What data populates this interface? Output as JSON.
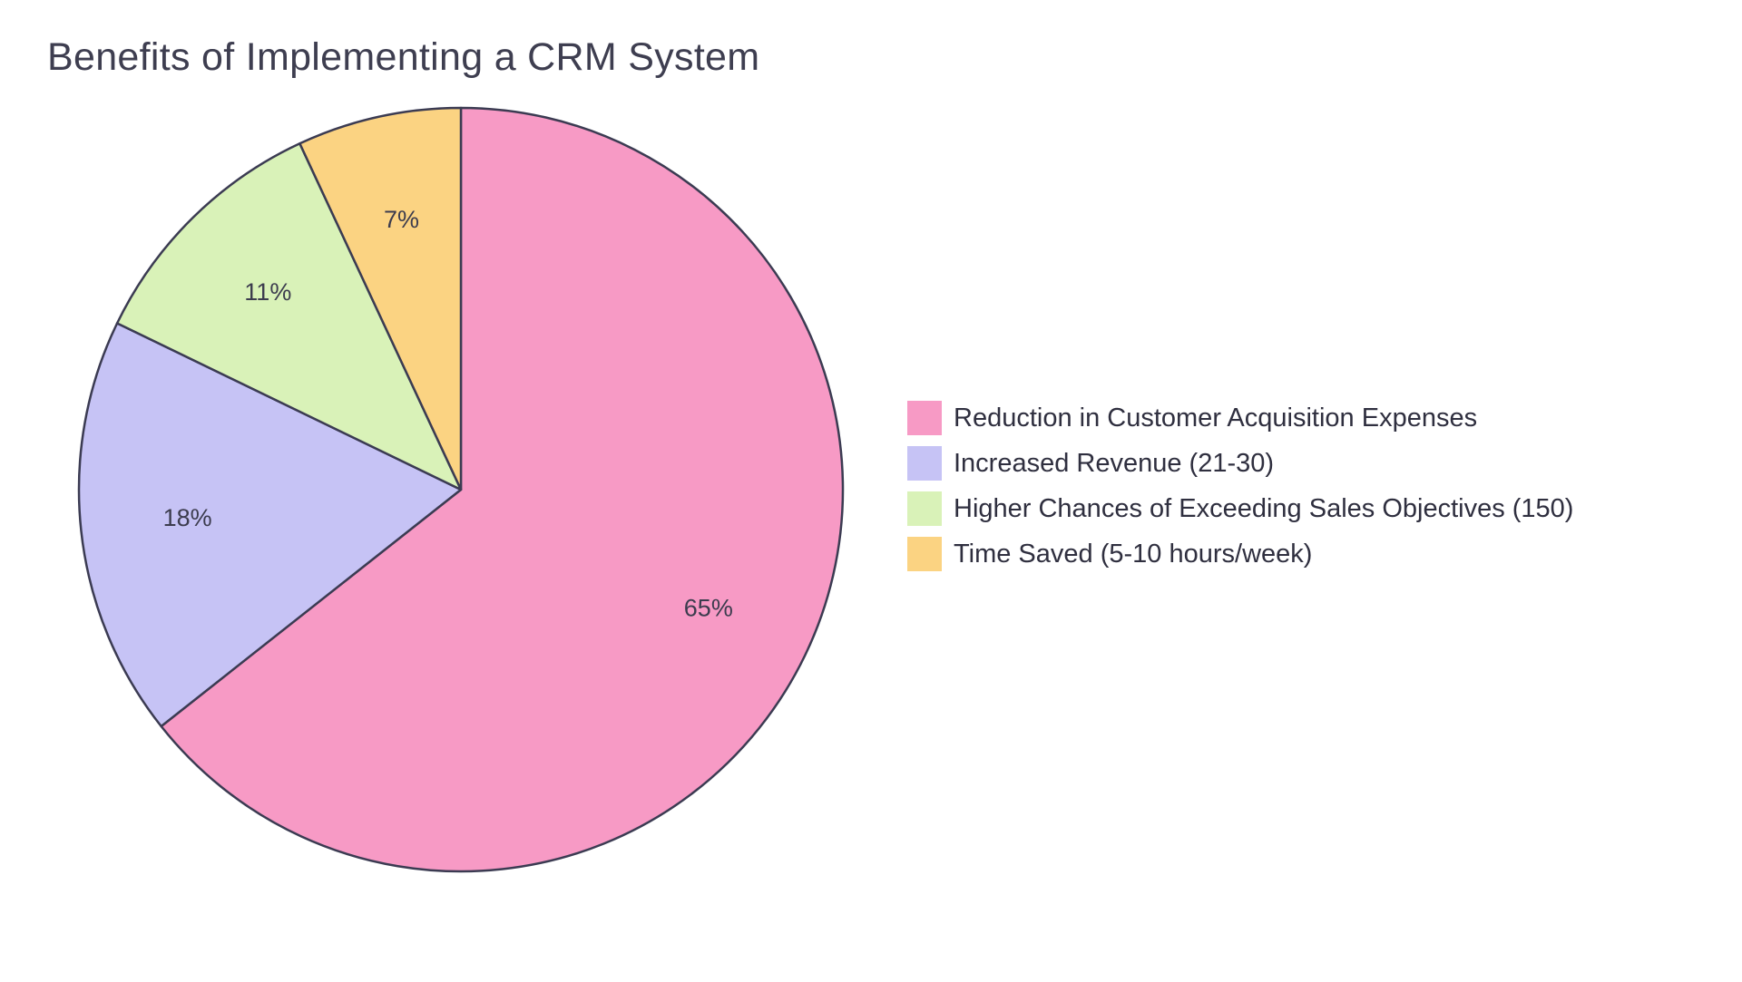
{
  "page": {
    "background": "#ffffff"
  },
  "chart_data": {
    "type": "pie",
    "title": "Benefits of Implementing a CRM System",
    "direction": "clockwise",
    "start_angle_deg": 0,
    "legend_position": "right",
    "stroke_color": "#3B3B52",
    "label_color": "#3C3C4E",
    "slices": [
      {
        "label": "Reduction in Customer Acquisition Expenses",
        "value": 65,
        "percent_label": "65%",
        "color": "#F79AC5"
      },
      {
        "label": "Increased Revenue (21-30)",
        "value": 18,
        "percent_label": "18%",
        "color": "#C6C3F5"
      },
      {
        "label": "Higher Chances of Exceeding Sales Objectives (150)",
        "value": 11,
        "percent_label": "11%",
        "color": "#D9F2B8"
      },
      {
        "label": "Time Saved (5-10 hours/week)",
        "value": 7,
        "percent_label": "7%",
        "color": "#FBD382"
      }
    ]
  }
}
